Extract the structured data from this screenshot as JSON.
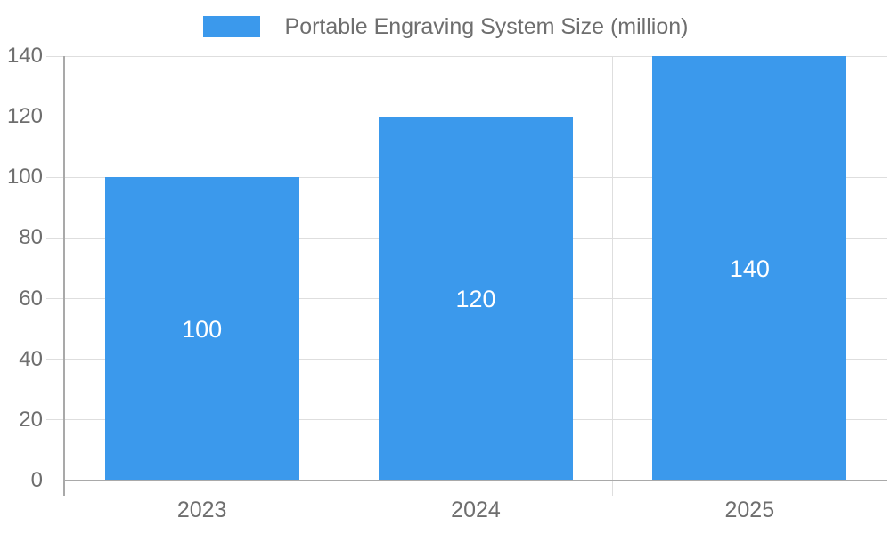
{
  "chart_data": {
    "type": "bar",
    "title": "Portable Engraving System Size (million)",
    "categories": [
      "2023",
      "2024",
      "2025"
    ],
    "values": [
      100,
      120,
      140
    ],
    "series": [
      {
        "name": "Portable Engraving System Size (million)",
        "values": [
          100,
          120,
          140
        ]
      }
    ],
    "data_labels": [
      "100",
      "120",
      "140"
    ],
    "xlabel": "",
    "ylabel": "",
    "ylim": [
      0,
      140
    ],
    "y_ticks": [
      0,
      20,
      40,
      60,
      80,
      100,
      120,
      140
    ],
    "grid": true,
    "legend_position": "top-center",
    "colors": {
      "bar": "#3b99ec",
      "bar_label": "#ffffff",
      "axis_text": "#6e6e6e",
      "grid_line": "#dedede",
      "axis_line": "#a9a9a9",
      "background": "#ffffff"
    }
  }
}
